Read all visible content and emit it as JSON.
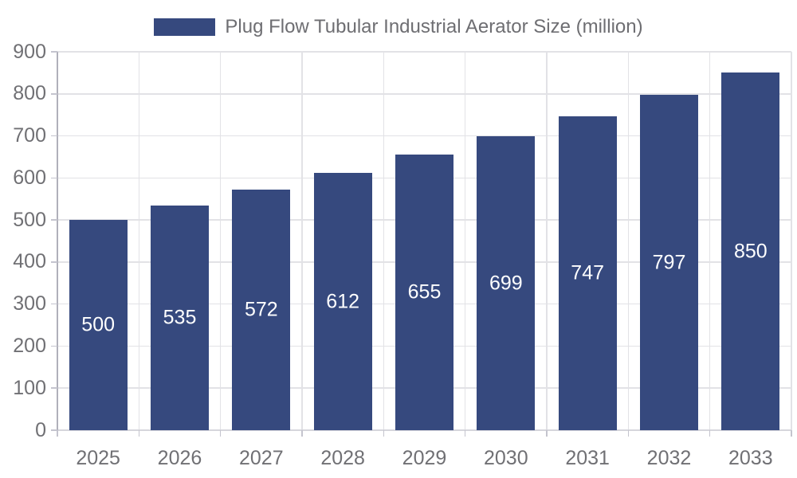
{
  "chart_data": {
    "type": "bar",
    "title": "Plug Flow Tubular Industrial Aerator Size (million)",
    "categories": [
      "2025",
      "2026",
      "2027",
      "2028",
      "2029",
      "2030",
      "2031",
      "2032",
      "2033"
    ],
    "values": [
      500,
      535,
      572,
      612,
      655,
      699,
      747,
      797,
      850
    ],
    "xlabel": "",
    "ylabel": "",
    "ylim": [
      0,
      900
    ],
    "ytick_step": 100,
    "ytick_labels": [
      "0",
      "100",
      "200",
      "300",
      "400",
      "500",
      "600",
      "700",
      "800",
      "900"
    ],
    "grid": true,
    "legend_position": "top-center",
    "show_value_labels": true,
    "bar_color": "#36497e",
    "value_label_color": "#ffffff",
    "axis_text_color": "#707074",
    "legend_text_color": "#6e6e72"
  }
}
